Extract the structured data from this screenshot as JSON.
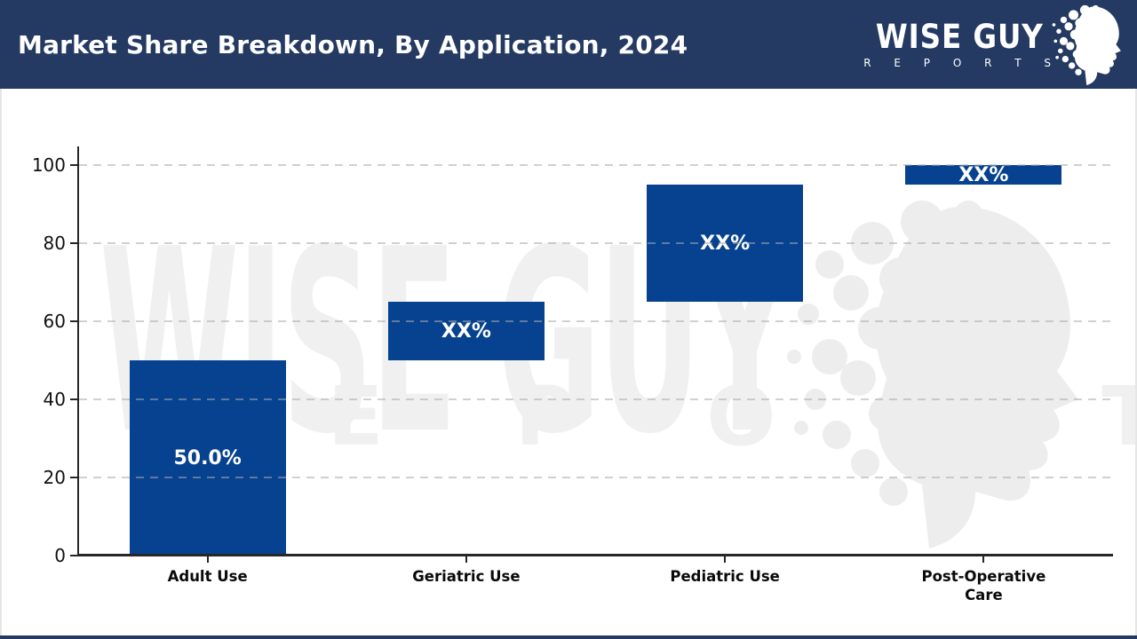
{
  "header": {
    "title": "Market Share Breakdown, By Application, 2024",
    "logo": {
      "brand": "WISE GUY",
      "sub": "R E P O R T S"
    }
  },
  "watermark": {
    "brand": "WISE GUY",
    "sub": "R E P O R T S"
  },
  "chart_data": {
    "type": "bar",
    "variant": "waterfall",
    "title": "Market Share Breakdown, By Application, 2024",
    "categories": [
      "Adult Use",
      "Geriatric Use",
      "Pediatric Use",
      "Post-Operative Care"
    ],
    "segments": [
      {
        "category": "Adult Use",
        "start": 0,
        "end": 50,
        "label": "50.0%"
      },
      {
        "category": "Geriatric Use",
        "start": 50,
        "end": 65,
        "label": "XX%"
      },
      {
        "category": "Pediatric Use",
        "start": 65,
        "end": 95,
        "label": "XX%"
      },
      {
        "category": "Post-Operative Care",
        "start": 95,
        "end": 100,
        "label": "XX%"
      }
    ],
    "xlabel": "",
    "ylabel": "",
    "ylim": [
      0,
      100
    ],
    "yticks": [
      0,
      20,
      40,
      60,
      80,
      100
    ],
    "grid": {
      "horizontal": true,
      "style": "dashed"
    },
    "legend": "none",
    "bar_color": "#06428f",
    "bar_label_color": "#ffffff"
  },
  "colors": {
    "header_bg": "#243a63",
    "bar": "#06428f",
    "grid": "#aaaaaa",
    "axis": "#262626",
    "watermark": "#f0f0f0"
  }
}
